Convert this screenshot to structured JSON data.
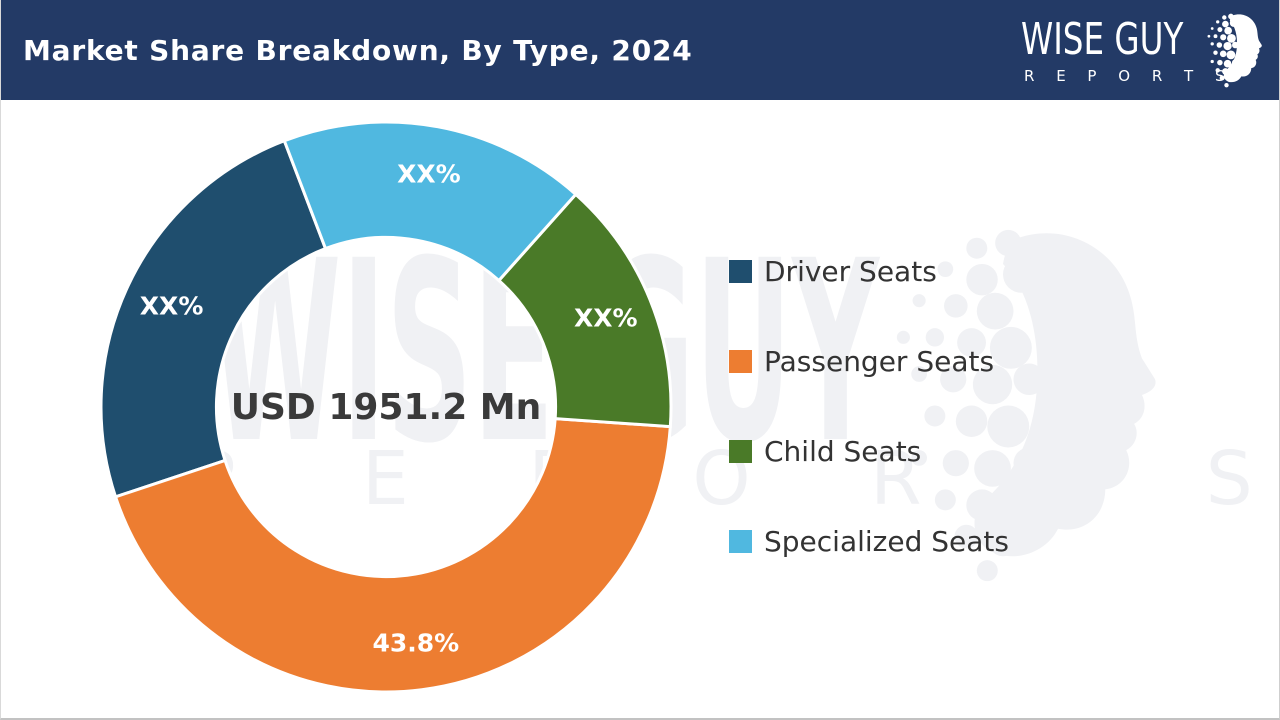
{
  "header": {
    "title": "Market Share Breakdown, By Type, 2024",
    "logo": {
      "line1": "WISE GUY",
      "line2": "R E P O R T S"
    }
  },
  "watermark": {
    "line1": "WISE GUY",
    "line2": "R E P O R T S"
  },
  "chart_data": {
    "type": "pie",
    "subtype": "donut",
    "title": "Market Share Breakdown, By Type, 2024",
    "center_label": "USD 1951.2 Mn",
    "start_angle_deg": 110.9,
    "direction": "counterclockwise",
    "inner_radius_ratio": 0.595,
    "legend_position": "right",
    "slices": [
      {
        "label": "Driver Seats",
        "value_pct": 24.3,
        "display_label": "XX%",
        "color": "#1f4e6e"
      },
      {
        "label": "Passenger Seats",
        "value_pct": 43.8,
        "display_label": "43.8%",
        "color": "#ed7d31"
      },
      {
        "label": "Child Seats",
        "value_pct": 14.5,
        "display_label": "XX%",
        "color": "#4a7a28"
      },
      {
        "label": "Specialized Seats",
        "value_pct": 17.4,
        "display_label": "XX%",
        "color": "#50b8e0"
      }
    ]
  },
  "colors": {
    "header_bg": "#233a66",
    "slice_separator": "#ffffff",
    "slice_label_text": "#ffffff",
    "center_text": "#3a3a3a",
    "legend_text": "#333333",
    "watermark": "#f0f1f4"
  }
}
